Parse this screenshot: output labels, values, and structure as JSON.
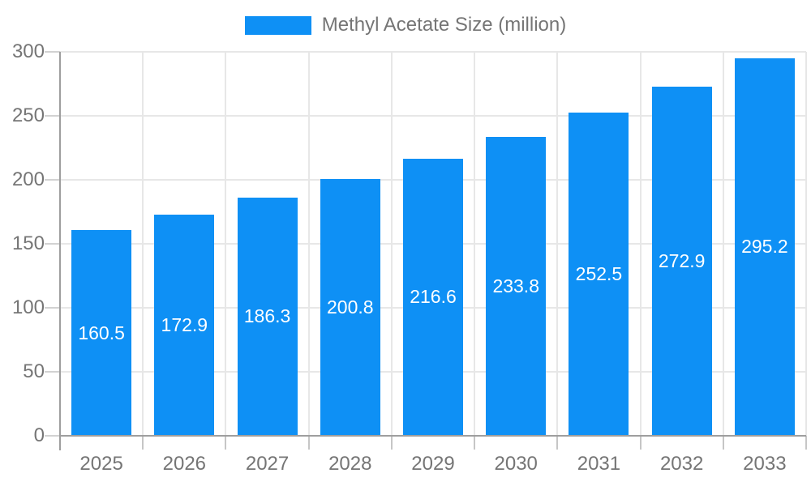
{
  "chart_data": {
    "type": "bar",
    "title": "Methyl Acetate Size (million)",
    "categories": [
      "2025",
      "2026",
      "2027",
      "2028",
      "2029",
      "2030",
      "2031",
      "2032",
      "2033"
    ],
    "series": [
      {
        "name": "Methyl Acetate Size (million)",
        "values": [
          160.5,
          172.9,
          186.3,
          200.8,
          216.6,
          233.8,
          252.5,
          272.9,
          295.2
        ]
      }
    ],
    "value_labels": [
      "160.5",
      "172.9",
      "186.3",
      "200.8",
      "216.6",
      "233.8",
      "252.5",
      "272.9",
      "295.2"
    ],
    "xlabel": "",
    "ylabel": "",
    "ylim": [
      0,
      300
    ],
    "yticks": [
      0,
      50,
      100,
      150,
      200,
      250,
      300
    ],
    "ytick_labels": [
      "0",
      "50",
      "100",
      "150",
      "200",
      "250",
      "300"
    ],
    "grid": true,
    "legend_position": "top",
    "colors": {
      "bar": "#0e90f5",
      "value_label": "#ffffff",
      "axis_text": "#757575",
      "axis_line": "#9e9e9e",
      "gridline": "#e7e7e7"
    }
  }
}
